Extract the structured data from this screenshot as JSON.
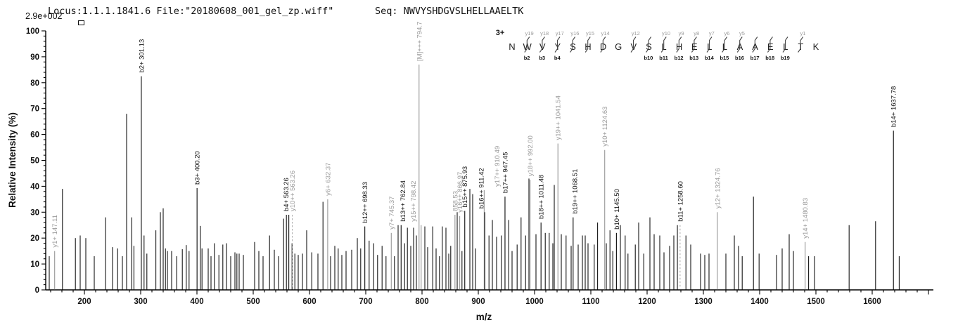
{
  "header": {
    "locus_file": "Locus:1.1.1.1841.6 File:\"20180608_001_gel_zp.wiff\"",
    "seq": "Seq: NWVYSHDGVSLHELLAAELTK",
    "max_intensity": "2.9e+002"
  },
  "sequence_ladder": {
    "charge": "3+",
    "residues": [
      "N",
      "W",
      "V",
      "Y",
      "S",
      "H",
      "D",
      "G",
      "V",
      "S",
      "L",
      "H",
      "E",
      "L",
      "L",
      "A",
      "A",
      "E",
      "L",
      "T",
      "K"
    ],
    "cleavages": [
      {
        "g": 1,
        "y": "y19",
        "b": "b2"
      },
      {
        "g": 2,
        "y": "y18",
        "b": "b3"
      },
      {
        "g": 3,
        "y": "y17",
        "b": "b4"
      },
      {
        "g": 4,
        "y": "y16",
        "b": ""
      },
      {
        "g": 5,
        "y": "y15",
        "b": ""
      },
      {
        "g": 6,
        "y": "y14",
        "b": ""
      },
      {
        "g": 8,
        "y": "y12",
        "b": ""
      },
      {
        "g": 9,
        "y": "",
        "b": "b10"
      },
      {
        "g": 10,
        "y": "y10",
        "b": "b11"
      },
      {
        "g": 11,
        "y": "y9",
        "b": "b12"
      },
      {
        "g": 12,
        "y": "y8",
        "b": "b13"
      },
      {
        "g": 13,
        "y": "y7",
        "b": "b14"
      },
      {
        "g": 14,
        "y": "y6",
        "b": "b15"
      },
      {
        "g": 15,
        "y": "y5",
        "b": "b16"
      },
      {
        "g": 16,
        "y": "",
        "b": "b17"
      },
      {
        "g": 17,
        "y": "",
        "b": "b18"
      },
      {
        "g": 18,
        "y": "",
        "b": "b19"
      },
      {
        "g": 19,
        "y": "y1",
        "b": ""
      }
    ]
  },
  "chart_data": {
    "type": "bar",
    "variant": "ms2-peptide-fragment-spectrum",
    "xlabel": "m/z",
    "ylabel": "Relative  Intensity (%)",
    "xlim": [
      131,
      1709
    ],
    "ylim": [
      0,
      100
    ],
    "x_major_ticks": [
      200,
      300,
      400,
      500,
      600,
      700,
      800,
      900,
      1000,
      1100,
      1200,
      1300,
      1400,
      1500,
      1600
    ],
    "x_minor_step": 20,
    "y_major_step": 10,
    "y_minor_step": 2,
    "colors": {
      "b_ion": "#141414",
      "y_ion": "#9b9b9b",
      "axis": "#000000"
    },
    "labeled_peaks": [
      {
        "mz": 147.11,
        "h": 15,
        "ion": "y",
        "label": "y1+ 147.11"
      },
      {
        "mz": 301.13,
        "h": 82.5,
        "ion": "b",
        "label": "b2+ 301.13"
      },
      {
        "mz": 400.2,
        "h": 39.3,
        "ion": "b",
        "label": "b3+ 400.20"
      },
      {
        "mz": 563.26,
        "h": 29,
        "ion": "b",
        "label": "b4+ 563.26",
        "dx": -4
      },
      {
        "mz": 563.26,
        "h": 29,
        "ion": "y",
        "label": "y10++ 563.26",
        "dash": true,
        "dx": 5
      },
      {
        "mz": 632.37,
        "h": 35,
        "ion": "y",
        "label": "y6+ 632.37"
      },
      {
        "mz": 698.33,
        "h": 24.5,
        "ion": "b",
        "label": "b12++ 698.33"
      },
      {
        "mz": 745.37,
        "h": 22,
        "ion": "y",
        "label": "y7+ 745.37"
      },
      {
        "mz": 762.84,
        "h": 25,
        "ion": "b",
        "label": "b13++ 762.84",
        "dx": 2
      },
      {
        "mz": 794.7,
        "h": 87,
        "ion": "y",
        "label": "[M]+++ 794.7"
      },
      {
        "mz": 798.42,
        "h": 25,
        "ion": "y",
        "label": "y15++ 798.42",
        "dx": -11
      },
      {
        "mz": 858.53,
        "h": 29,
        "ion": "y",
        "label": "858.53"
      },
      {
        "mz": 866.97,
        "h": 28.5,
        "ion": "y",
        "label": "y16++ 866.97"
      },
      {
        "mz": 875.93,
        "h": 30.5,
        "ion": "b",
        "label": "b15++ 875.93"
      },
      {
        "mz": 910.49,
        "h": 38.5,
        "ion": "y",
        "label": "y17++ 910.49",
        "dx": 18
      },
      {
        "mz": 911.42,
        "h": 30,
        "ion": "b",
        "label": "b16++ 911.42",
        "dx": -5
      },
      {
        "mz": 947.45,
        "h": 36,
        "ion": "b",
        "label": "b17++ 947.45"
      },
      {
        "mz": 992.0,
        "h": 42.5,
        "ion": "y",
        "label": "y18++ 992.00"
      },
      {
        "mz": 1011.48,
        "h": 26,
        "ion": "b",
        "label": "b18++ 1011.48"
      },
      {
        "mz": 1041.54,
        "h": 56.5,
        "ion": "y",
        "label": "y19++ 1041.54"
      },
      {
        "mz": 1068.51,
        "h": 28,
        "ion": "b",
        "label": "b19++ 1068.51",
        "dx": 2
      },
      {
        "mz": 1124.63,
        "h": 54,
        "ion": "y",
        "label": "y10+ 1124.63"
      },
      {
        "mz": 1145.5,
        "h": 22,
        "ion": "b",
        "label": "b10+ 1145.50"
      },
      {
        "mz": 1258.6,
        "h": 25,
        "ion": "b",
        "label": "b11+ 1258.60",
        "dash": true
      },
      {
        "mz": 1324.76,
        "h": 30,
        "ion": "y",
        "label": "y12+ 1324.76"
      },
      {
        "mz": 1480.83,
        "h": 18.5,
        "ion": "y",
        "label": "y14+ 1480.83"
      },
      {
        "mz": 1637.78,
        "h": 61.5,
        "ion": "b",
        "label": "b14+ 1637.78"
      }
    ],
    "unlabeled_peaks": [
      [
        137.5,
        13
      ],
      [
        161,
        39
      ],
      [
        184,
        20
      ],
      [
        192.5,
        21
      ],
      [
        202.5,
        20
      ],
      [
        217.5,
        13
      ],
      [
        237.5,
        28
      ],
      [
        250,
        16.5
      ],
      [
        259,
        16
      ],
      [
        267.5,
        13
      ],
      [
        275,
        68
      ],
      [
        284,
        28
      ],
      [
        288,
        17
      ],
      [
        306,
        21
      ],
      [
        311,
        14
      ],
      [
        327,
        23
      ],
      [
        335,
        30
      ],
      [
        340,
        31.5
      ],
      [
        344,
        16
      ],
      [
        347.5,
        15
      ],
      [
        355,
        15
      ],
      [
        364,
        13
      ],
      [
        374,
        15.7
      ],
      [
        381,
        17.3
      ],
      [
        386,
        15
      ],
      [
        406,
        24.7
      ],
      [
        409,
        16
      ],
      [
        420,
        16
      ],
      [
        425,
        13
      ],
      [
        431,
        18
      ],
      [
        439,
        13.5
      ],
      [
        446,
        17.5
      ],
      [
        452.5,
        18
      ],
      [
        460,
        13
      ],
      [
        467.5,
        14.5
      ],
      [
        471,
        14
      ],
      [
        475,
        14
      ],
      [
        482.5,
        13.5
      ],
      [
        502.5,
        18.5
      ],
      [
        510,
        15
      ],
      [
        517.5,
        13
      ],
      [
        529,
        21
      ],
      [
        537.5,
        15.5
      ],
      [
        545,
        13
      ],
      [
        554,
        27.5
      ],
      [
        559,
        29
      ],
      [
        569,
        18
      ],
      [
        574,
        14
      ],
      [
        580,
        13.5
      ],
      [
        587.5,
        14
      ],
      [
        595,
        23
      ],
      [
        604,
        14.5
      ],
      [
        615,
        14
      ],
      [
        624,
        34
      ],
      [
        637.5,
        13
      ],
      [
        645,
        17
      ],
      [
        651,
        16
      ],
      [
        657.5,
        13.5
      ],
      [
        665,
        15
      ],
      [
        675,
        15.5
      ],
      [
        685,
        20
      ],
      [
        691,
        16
      ],
      [
        706,
        19
      ],
      [
        714,
        18
      ],
      [
        721,
        13.5
      ],
      [
        729,
        17
      ],
      [
        736,
        13
      ],
      [
        751,
        13
      ],
      [
        757.5,
        25
      ],
      [
        769,
        18
      ],
      [
        774,
        24
      ],
      [
        780,
        17
      ],
      [
        785,
        24
      ],
      [
        790,
        21
      ],
      [
        805,
        24.5
      ],
      [
        810,
        16.5
      ],
      [
        819,
        24.5
      ],
      [
        825,
        16
      ],
      [
        831,
        13
      ],
      [
        836,
        24.5
      ],
      [
        842.5,
        24
      ],
      [
        847.5,
        14
      ],
      [
        851,
        17
      ],
      [
        862.5,
        30
      ],
      [
        871,
        15
      ],
      [
        885,
        39
      ],
      [
        890,
        37
      ],
      [
        895,
        16
      ],
      [
        919,
        21
      ],
      [
        925,
        27
      ],
      [
        932.5,
        20.5
      ],
      [
        941,
        21
      ],
      [
        954,
        27
      ],
      [
        960,
        15
      ],
      [
        969,
        17.5
      ],
      [
        976,
        28
      ],
      [
        984,
        21
      ],
      [
        990,
        43
      ],
      [
        1002.5,
        21.5
      ],
      [
        1019,
        22
      ],
      [
        1026,
        22
      ],
      [
        1032.5,
        18
      ],
      [
        1035,
        40.5
      ],
      [
        1047.5,
        21.5
      ],
      [
        1056,
        21
      ],
      [
        1065,
        17
      ],
      [
        1077.5,
        17.5
      ],
      [
        1085,
        21
      ],
      [
        1090,
        21
      ],
      [
        1095,
        18
      ],
      [
        1106,
        17.5
      ],
      [
        1112,
        26
      ],
      [
        1127.5,
        18
      ],
      [
        1134,
        23
      ],
      [
        1139,
        15
      ],
      [
        1152.5,
        25
      ],
      [
        1161,
        21
      ],
      [
        1166,
        14
      ],
      [
        1179,
        17.5
      ],
      [
        1185,
        26
      ],
      [
        1194,
        14
      ],
      [
        1205,
        28
      ],
      [
        1212.5,
        21.5
      ],
      [
        1222.5,
        21
      ],
      [
        1230,
        14.5
      ],
      [
        1240,
        17
      ],
      [
        1247.5,
        21
      ],
      [
        1253.8,
        25
      ],
      [
        1269,
        21
      ],
      [
        1277.5,
        17.5
      ],
      [
        1295,
        14
      ],
      [
        1302.5,
        13.5
      ],
      [
        1310,
        14
      ],
      [
        1340,
        14
      ],
      [
        1355,
        21
      ],
      [
        1362.5,
        17
      ],
      [
        1369,
        13
      ],
      [
        1389,
        36
      ],
      [
        1399,
        14
      ],
      [
        1430,
        13.5
      ],
      [
        1440,
        16
      ],
      [
        1452.5,
        21.5
      ],
      [
        1460,
        15
      ],
      [
        1487,
        13
      ],
      [
        1497.5,
        13
      ],
      [
        1559,
        25
      ],
      [
        1606,
        26.5
      ],
      [
        1648,
        13
      ]
    ]
  }
}
